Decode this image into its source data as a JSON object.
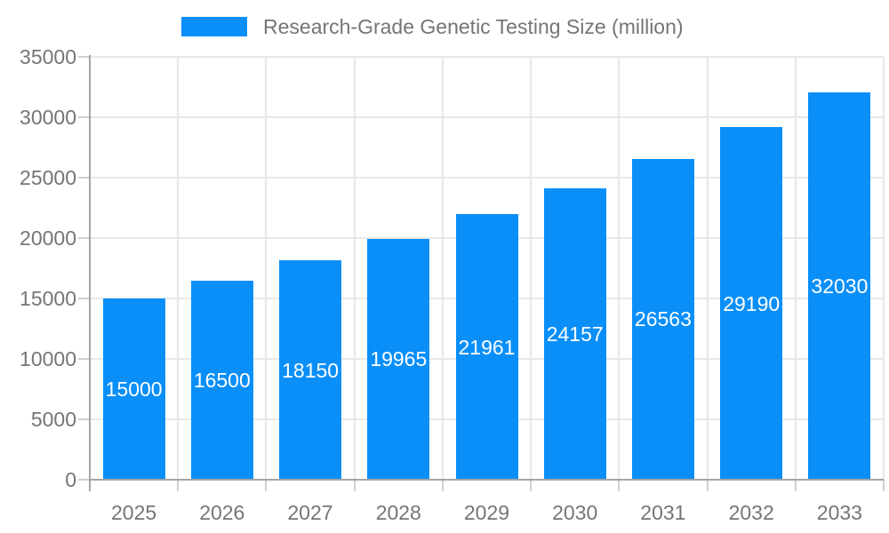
{
  "chart_data": {
    "type": "bar",
    "title": "Research-Grade Genetic Testing Size (million)",
    "categories": [
      "2025",
      "2026",
      "2027",
      "2028",
      "2029",
      "2030",
      "2031",
      "2032",
      "2033"
    ],
    "values": [
      15000,
      16500,
      18150,
      19965,
      21961,
      24157,
      26563,
      29190,
      32030
    ],
    "xlabel": "",
    "ylabel": "",
    "ylim": [
      0,
      35000
    ],
    "yticks": [
      0,
      5000,
      10000,
      15000,
      20000,
      25000,
      30000,
      35000
    ],
    "grid": true,
    "legend_position": "top",
    "bar_labels_inside": true
  },
  "colors": {
    "bar": "#0a8ff9",
    "bar_label": "#ffffff",
    "axis_text": "#757575",
    "gridline": "#e8e8e8",
    "tick": "#cfcfcf",
    "axis_line": "#a6a6a6",
    "background": "#ffffff"
  }
}
